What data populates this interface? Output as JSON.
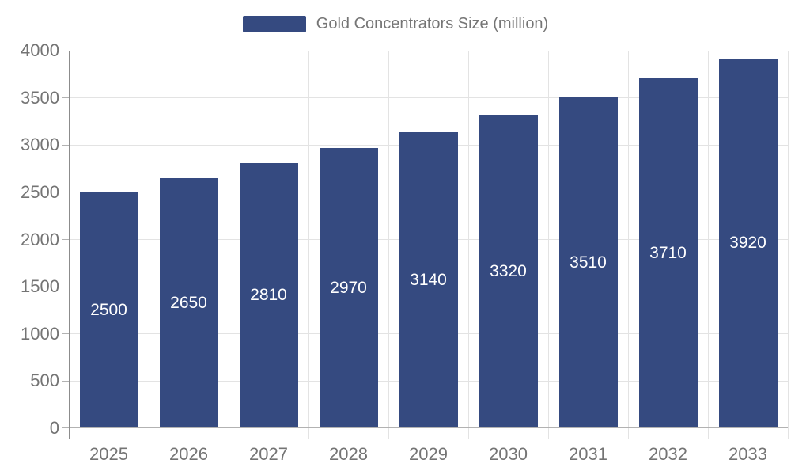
{
  "chart_data": {
    "type": "bar",
    "title": "",
    "categories": [
      "2025",
      "2026",
      "2027",
      "2028",
      "2029",
      "2030",
      "2031",
      "2032",
      "2033"
    ],
    "values": [
      2500,
      2650,
      2810,
      2970,
      3140,
      3320,
      3510,
      3710,
      3920
    ],
    "series_name": "Gold Concentrators Size (million)",
    "xlabel": "",
    "ylabel": "",
    "ylim": [
      0,
      4000
    ],
    "ytick_step": 500,
    "ytick_labels": [
      "0",
      "500",
      "1000",
      "1500",
      "2000",
      "2500",
      "3000",
      "3500",
      "4000"
    ],
    "grid": true,
    "legend_position": "top",
    "bar_value_labels_shown": true
  },
  "legend": {
    "label": "Gold Concentrators Size (million)"
  },
  "colors": {
    "bar_fill": "#354A80",
    "bar_value_text": "#ffffff",
    "gridline": "#e3e3e3",
    "y_axis_line": "#8c8c8c",
    "x_axis_line": "#b2b2b2",
    "tick_text": "#747474",
    "legend_text": "#757575",
    "background": "#ffffff"
  }
}
